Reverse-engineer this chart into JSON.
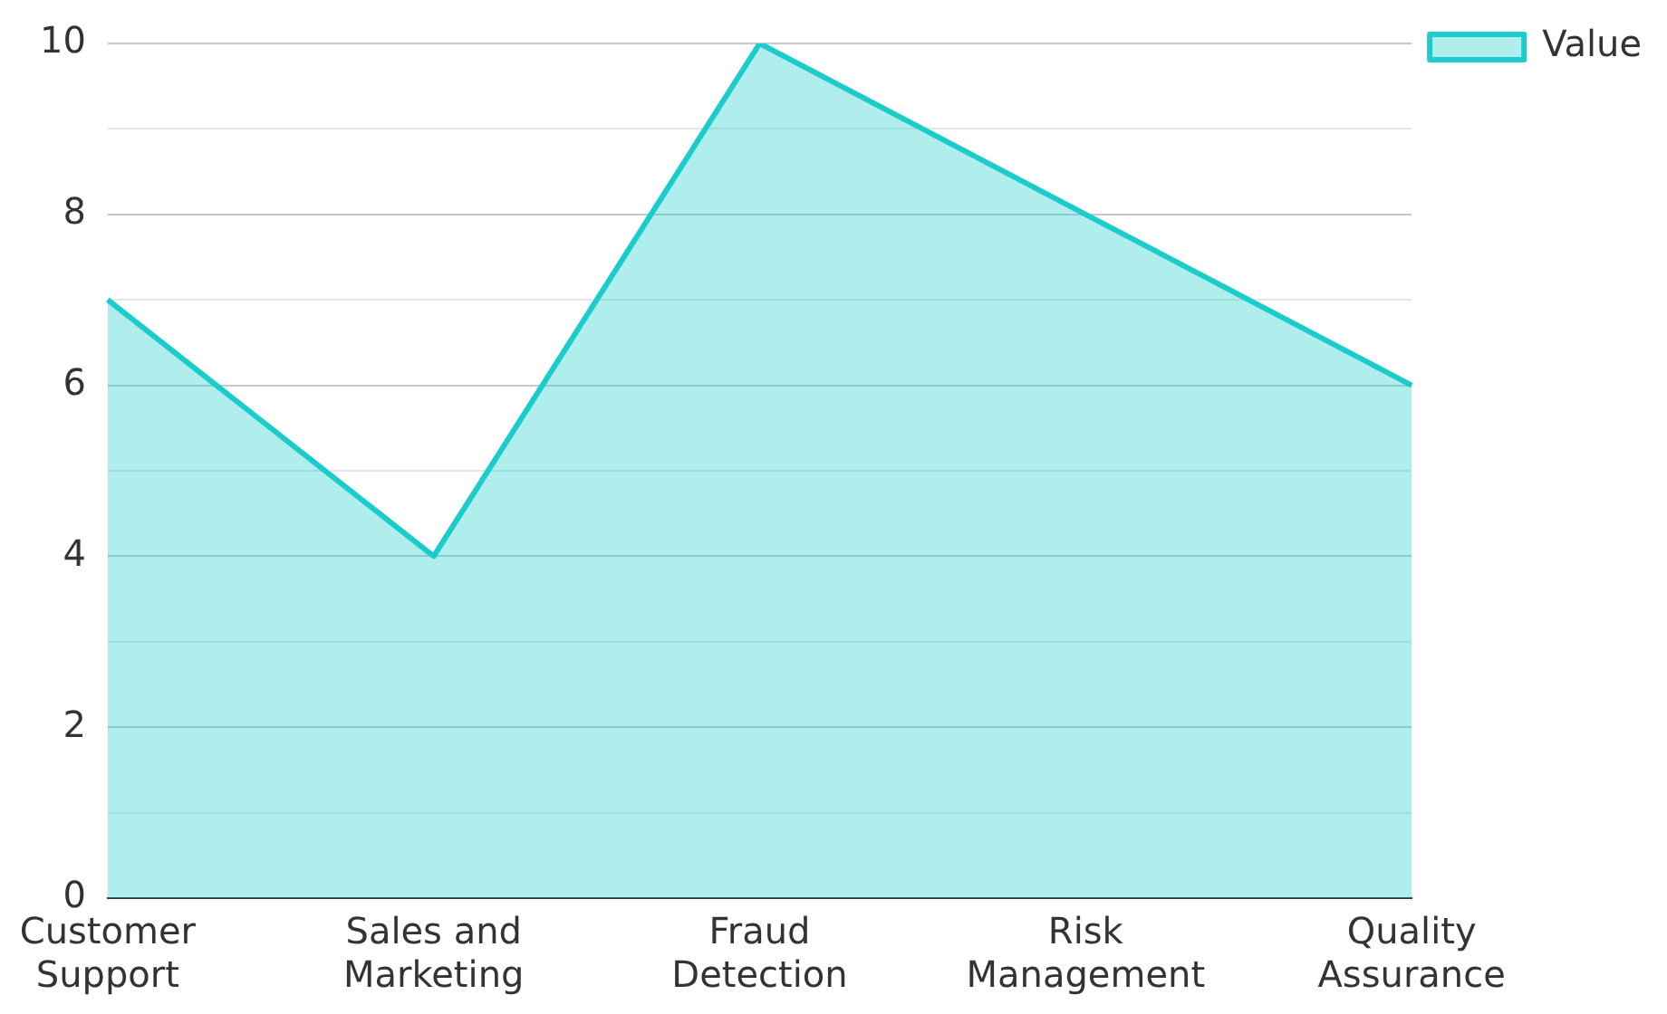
{
  "chart_data": {
    "type": "area",
    "categories": [
      "Customer Support",
      "Sales and Marketing",
      "Fraud Detection",
      "Risk Management",
      "Quality Assurance"
    ],
    "series": [
      {
        "name": "Value",
        "color": "#1ccccc",
        "values": [
          7,
          4,
          10,
          8,
          6
        ]
      }
    ],
    "ylim": [
      0,
      10
    ],
    "yticks": [
      0,
      {
        "value": 1,
        "label": null
      },
      2,
      {
        "value": 3,
        "label": null
      },
      4,
      {
        "value": 5,
        "label": null
      },
      6,
      {
        "value": 7,
        "label": null
      },
      8,
      {
        "value": 9,
        "label": null
      },
      10
    ],
    "grid": "y",
    "legend": "top right"
  }
}
